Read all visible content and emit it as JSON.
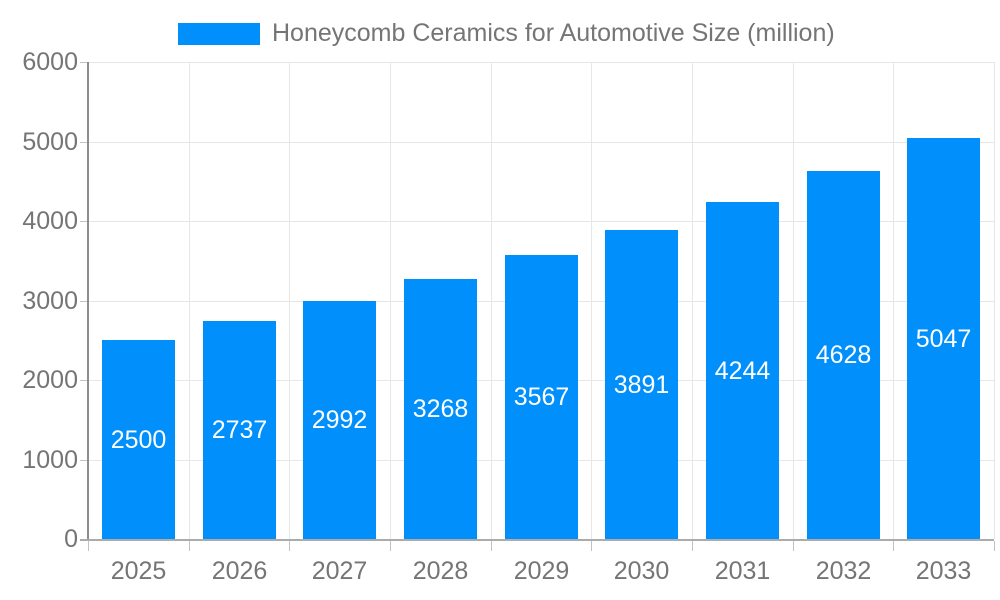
{
  "legend": {
    "label": "Honeycomb Ceramics for Automotive Size (million)"
  },
  "chart_data": {
    "type": "bar",
    "title": "Honeycomb Ceramics for Automotive Size (million)",
    "categories": [
      "2025",
      "2026",
      "2027",
      "2028",
      "2029",
      "2030",
      "2031",
      "2032",
      "2033"
    ],
    "values": [
      2500,
      2737,
      2992,
      3268,
      3567,
      3891,
      4244,
      4628,
      5047
    ],
    "xlabel": "",
    "ylabel": "",
    "ylim": [
      0,
      6000
    ],
    "y_ticks": [
      0,
      1000,
      2000,
      3000,
      4000,
      5000,
      6000
    ],
    "grid": true,
    "legend_position": "top",
    "value_labels_inside": true
  },
  "colors": {
    "background": "#FFFFFF",
    "bar": "#008FFB",
    "value_label": "#FFFFFF",
    "grid": "#E7E7E7",
    "y_axis_line": "#8C8C8C",
    "x_axis_line": "#ABABAB",
    "tick": "#C2C2C2",
    "axis_label": "#757575",
    "legend_text": "#757575"
  }
}
